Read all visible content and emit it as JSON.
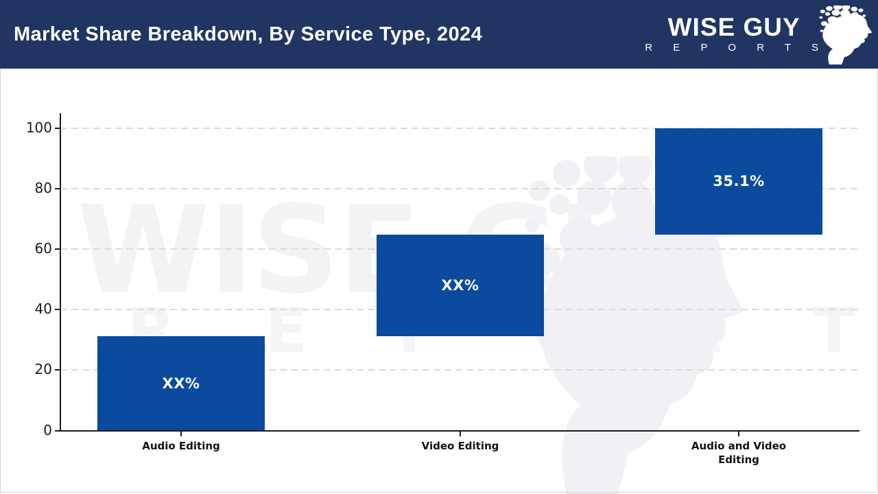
{
  "header": {
    "title": "Market Share Breakdown, By Service Type, 2024",
    "logo": {
      "line1": "WISE GUY",
      "line2": "R E P O R T S",
      "icon": "dotted-head-profile"
    }
  },
  "watermark": {
    "line1": "WISE GUY",
    "line2": "R E P O R T S",
    "icon": "dotted-head-profile"
  },
  "chart_data": {
    "type": "bar",
    "subtype": "floating-segment-waterfall",
    "title": "Market Share Breakdown, By Service Type, 2024",
    "categories": [
      "Audio Editing",
      "Video Editing",
      "Audio and Video Editing"
    ],
    "series": [
      {
        "name": "Market Share (%)",
        "segments": [
          {
            "start": 0,
            "end": 31.2
          },
          {
            "start": 31.2,
            "end": 64.9
          },
          {
            "start": 64.9,
            "end": 100
          }
        ]
      }
    ],
    "bar_labels": [
      "XX%",
      "XX%",
      "35.1%"
    ],
    "xlabel": "",
    "ylabel": "",
    "ylim": [
      0,
      100
    ],
    "yticks": [
      0,
      20,
      40,
      60,
      80,
      100
    ],
    "grid": "horizontal-dashed",
    "legend": "none",
    "bar_color": "#0b4a9e"
  },
  "colors": {
    "header_bg": "#213562",
    "bar": "#0b4a9e",
    "grid": "#dadada",
    "axis": "#1a1a1a",
    "watermark": "#f2f3f5",
    "page_bg": "#ffffff"
  }
}
